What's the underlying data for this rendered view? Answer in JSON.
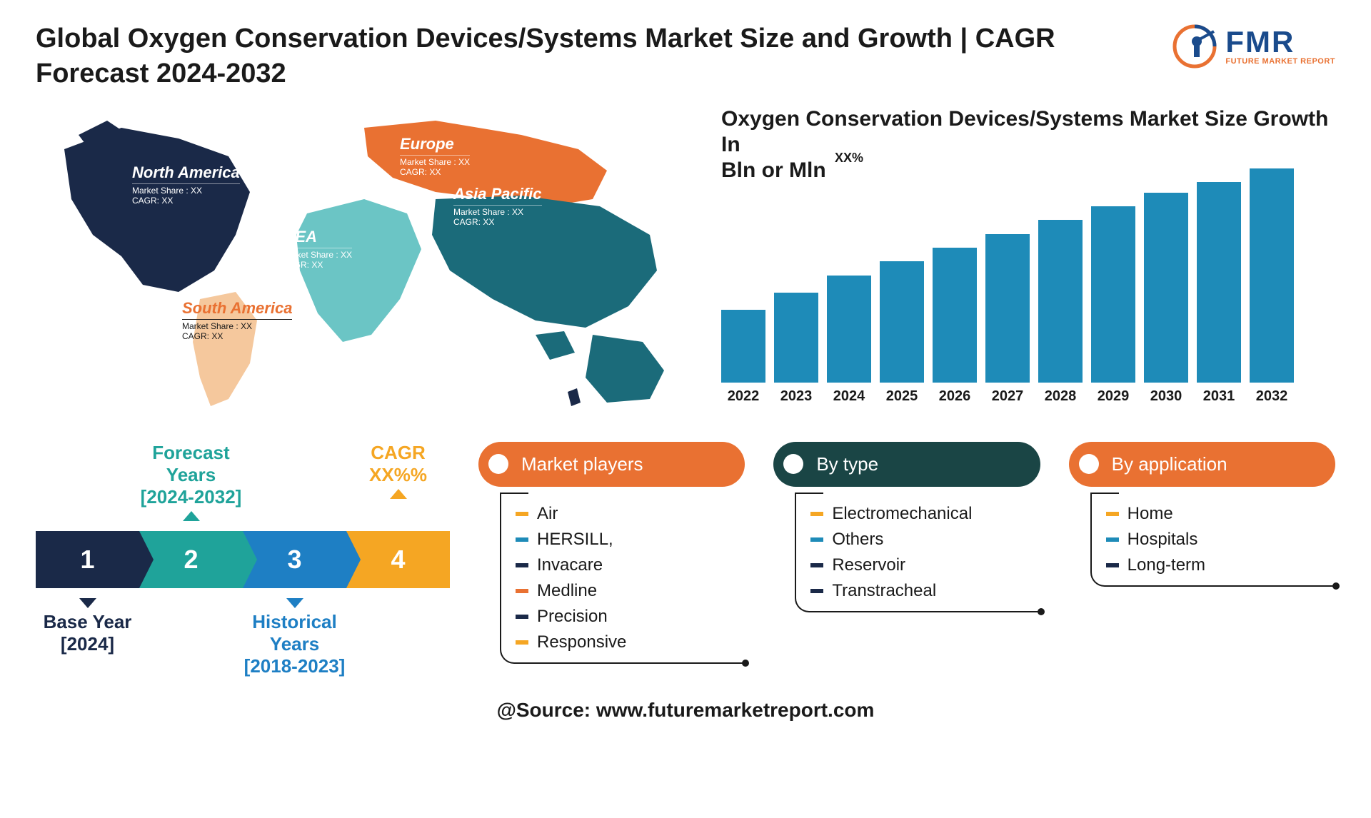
{
  "title": "Global Oxygen Conservation Devices/Systems Market Size and Growth | CAGR Forecast 2024-2032",
  "logo": {
    "fmr": "FMR",
    "sub": "FUTURE MARKET REPORT"
  },
  "map": {
    "regions": {
      "na": {
        "name": "North America",
        "share": "Market Share : XX",
        "cagr": "CAGR: XX",
        "color": "#1a2948"
      },
      "sa": {
        "name": "South America",
        "share": "Market Share : XX",
        "cagr": "CAGR: XX",
        "color": "#f5c89d"
      },
      "eu": {
        "name": "Europe",
        "share": "Market Share : XX",
        "cagr": "CAGR: XX",
        "color": "#e97132"
      },
      "mea": {
        "name": "MEA",
        "share": "Market Share : XX",
        "cagr": "CAGR: XX",
        "color": "#6bc5c5"
      },
      "ap": {
        "name": "Asia Pacific",
        "share": "Market Share : XX",
        "cagr": "CAGR: XX",
        "color": "#1b6b7a"
      }
    }
  },
  "chart": {
    "title": "Oxygen Conservation Devices/Systems Market Size Growth In\nBln or Mln",
    "years": [
      "2022",
      "2023",
      "2024",
      "2025",
      "2026",
      "2027",
      "2028",
      "2029",
      "2030",
      "2031",
      "2032"
    ],
    "values": [
      105,
      130,
      155,
      175,
      195,
      215,
      235,
      255,
      275,
      290,
      310
    ],
    "max_height": 300,
    "bar_color": "#1e8bb8",
    "annot_2024": "XX%",
    "annot_2032": "XX%"
  },
  "timeline": {
    "forecast_label": "Forecast Years",
    "forecast_range": "[2024-2032]",
    "cagr_label": "CAGR",
    "cagr_value": "XX%%",
    "base_label": "Base Year",
    "base_range": "[2024]",
    "hist_label": "Historical Years",
    "hist_range": "[2018-2023]",
    "segs": [
      {
        "n": "1",
        "color": "#1a2948"
      },
      {
        "n": "2",
        "color": "#1fa39a"
      },
      {
        "n": "3",
        "color": "#1e7fc4"
      },
      {
        "n": "4",
        "color": "#f5a623"
      }
    ]
  },
  "pills": {
    "market_players": {
      "title": "Market players",
      "bg": "#e97132",
      "items": [
        "Air",
        "HERSILL,",
        "Invacare",
        "Medline",
        "Precision",
        "Responsive"
      ],
      "dash_colors": [
        "#f5a623",
        "#1e8bb8",
        "#1a2948",
        "#e97132",
        "#1a2948",
        "#f5a623"
      ]
    },
    "by_type": {
      "title": "By type",
      "bg": "#1a4545",
      "items": [
        "Electromechanical",
        "Others",
        "Reservoir",
        "Transtracheal"
      ],
      "dash_colors": [
        "#f5a623",
        "#1e8bb8",
        "#1a2948",
        "#1a2948"
      ]
    },
    "by_application": {
      "title": "By application",
      "bg": "#e97132",
      "items": [
        "Home",
        "Hospitals",
        "Long-term"
      ],
      "dash_colors": [
        "#f5a623",
        "#1e8bb8",
        "#1a2948"
      ]
    }
  },
  "source": "@Source: www.futuremarketreport.com"
}
